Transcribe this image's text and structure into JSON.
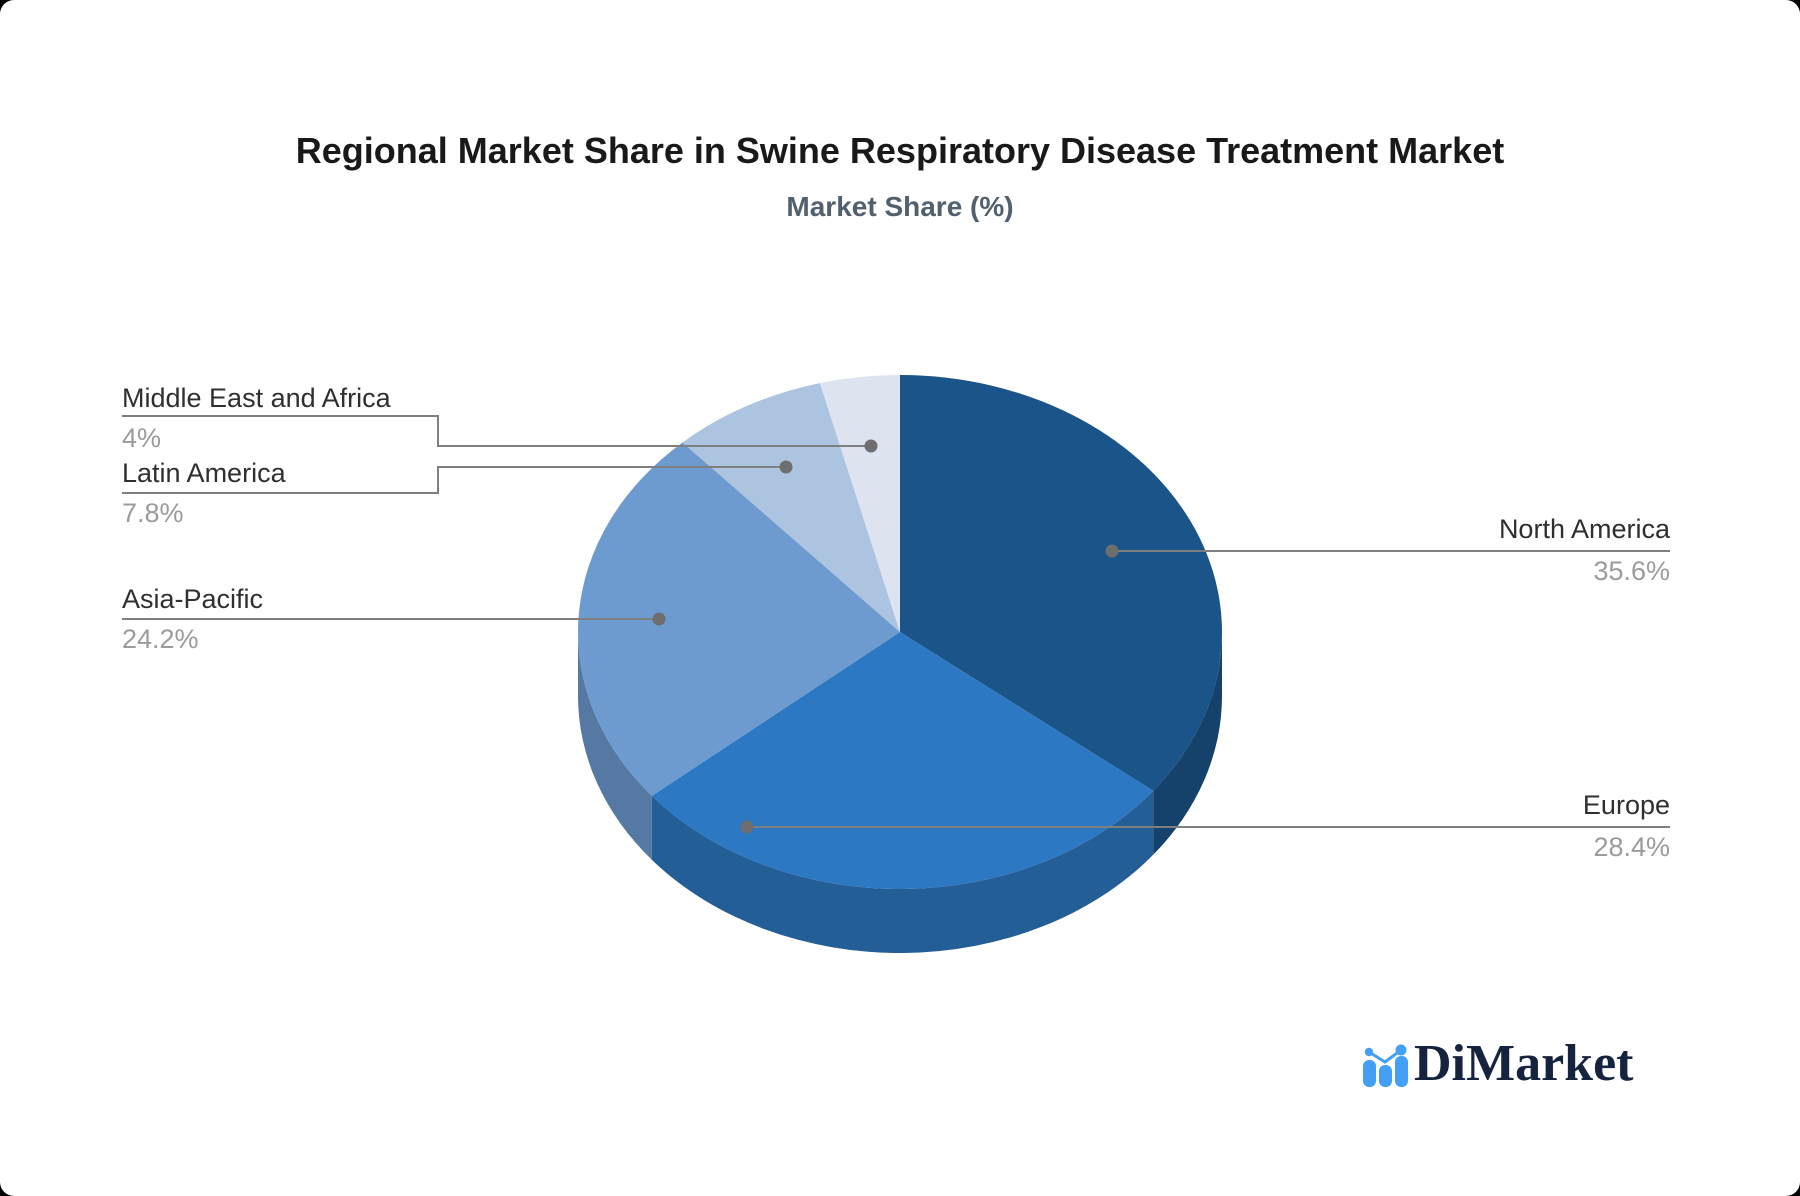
{
  "title": "Regional Market Share in Swine Respiratory Disease Treatment Market",
  "subtitle": "Market Share (%)",
  "logo": {
    "text": "DiMarket"
  },
  "colors": {
    "leader_line": "#7F7F7F",
    "leader_dot": "#6E6E6E",
    "label_name": "#2F2F2F",
    "label_value": "#9B9B9B",
    "logo_accent": "#44A0F5",
    "logo_text": "#16233E"
  },
  "chart_data": {
    "type": "pie",
    "style": "3d",
    "title": "Regional Market Share in Swine Respiratory Disease Treatment Market",
    "subtitle": "Market Share (%)",
    "unit": "%",
    "start_angle_deg_from_top": 0,
    "direction": "clockwise",
    "legend": "none (callout labels with leader lines)",
    "slices": [
      {
        "label": "North America",
        "value": 35.6,
        "display": "35.6%",
        "color": "#1A5488"
      },
      {
        "label": "Europe",
        "value": 28.4,
        "display": "28.4%",
        "color": "#2D78C2"
      },
      {
        "label": "Asia-Pacific",
        "value": 24.2,
        "display": "24.2%",
        "color": "#6D9BD0"
      },
      {
        "label": "Latin America",
        "value": 7.8,
        "display": "7.8%",
        "color": "#ACC4E0"
      },
      {
        "label": "Middle East and Africa",
        "value": 4,
        "display": "4%",
        "color": "#DDE4F0"
      }
    ]
  }
}
